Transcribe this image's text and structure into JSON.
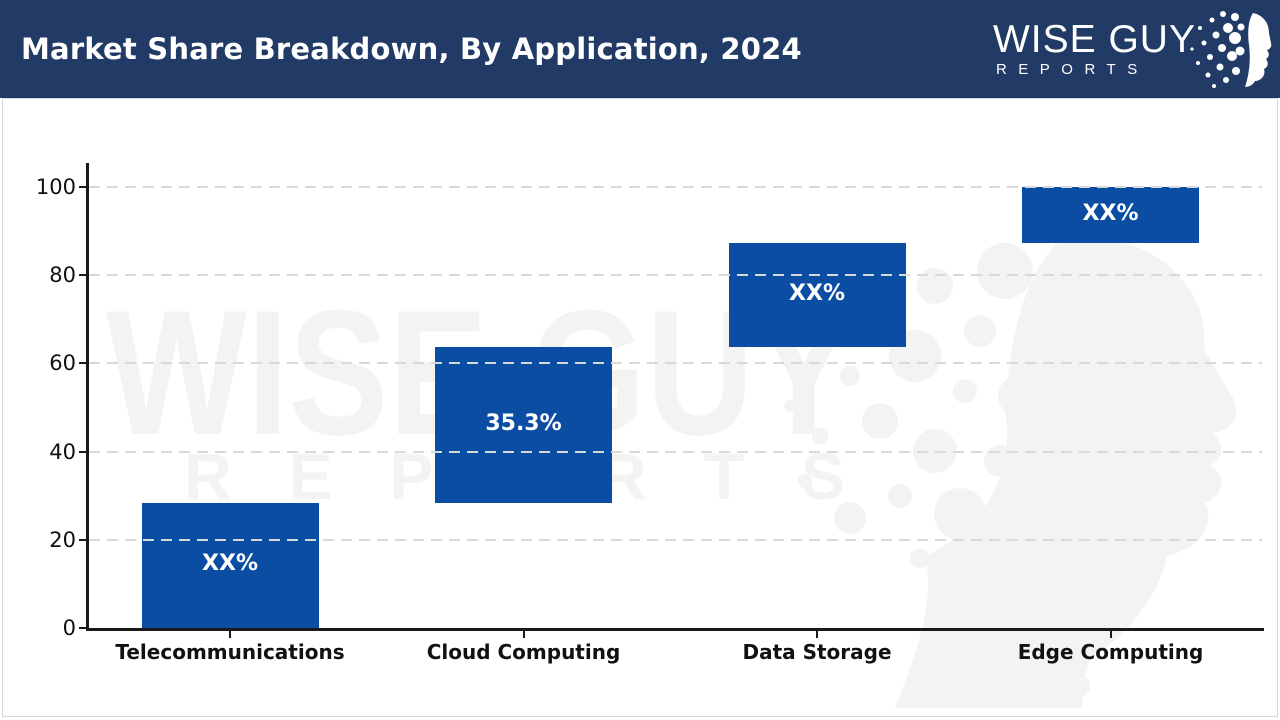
{
  "header": {
    "title": "Market Share Breakdown, By Application, 2024",
    "brand": {
      "line1": "WISE GUY",
      "line2": "REPORTS"
    }
  },
  "watermark": {
    "line1": "WISE GUY",
    "line2": "REPORTS"
  },
  "colors": {
    "header_bg": "#213a66",
    "bar": "#0b4da2",
    "grid": "#d9d9d9",
    "axis": "#1a1a1a",
    "watermark": "#f3f3f3",
    "bar_label": "#ffffff"
  },
  "chart_data": {
    "type": "bar",
    "subtype": "waterfall",
    "title": "Market Share Breakdown, By Application, 2024",
    "xlabel": "",
    "ylabel": "",
    "categories": [
      "Telecommunications",
      "Cloud Computing",
      "Data Storage",
      "Edge Computing"
    ],
    "segments": [
      {
        "category": "Telecommunications",
        "start": 0,
        "end": 28.4,
        "label": "XX%"
      },
      {
        "category": "Cloud Computing",
        "start": 28.4,
        "end": 63.7,
        "label": "35.3%"
      },
      {
        "category": "Data Storage",
        "start": 63.7,
        "end": 87.2,
        "label": "XX%"
      },
      {
        "category": "Edge Computing",
        "start": 87.2,
        "end": 100,
        "label": "XX%"
      }
    ],
    "yticks": [
      0,
      20,
      40,
      60,
      80,
      100
    ],
    "ylim": [
      0,
      105.4
    ],
    "grid": "horizontal-dashed",
    "legend": "none"
  }
}
